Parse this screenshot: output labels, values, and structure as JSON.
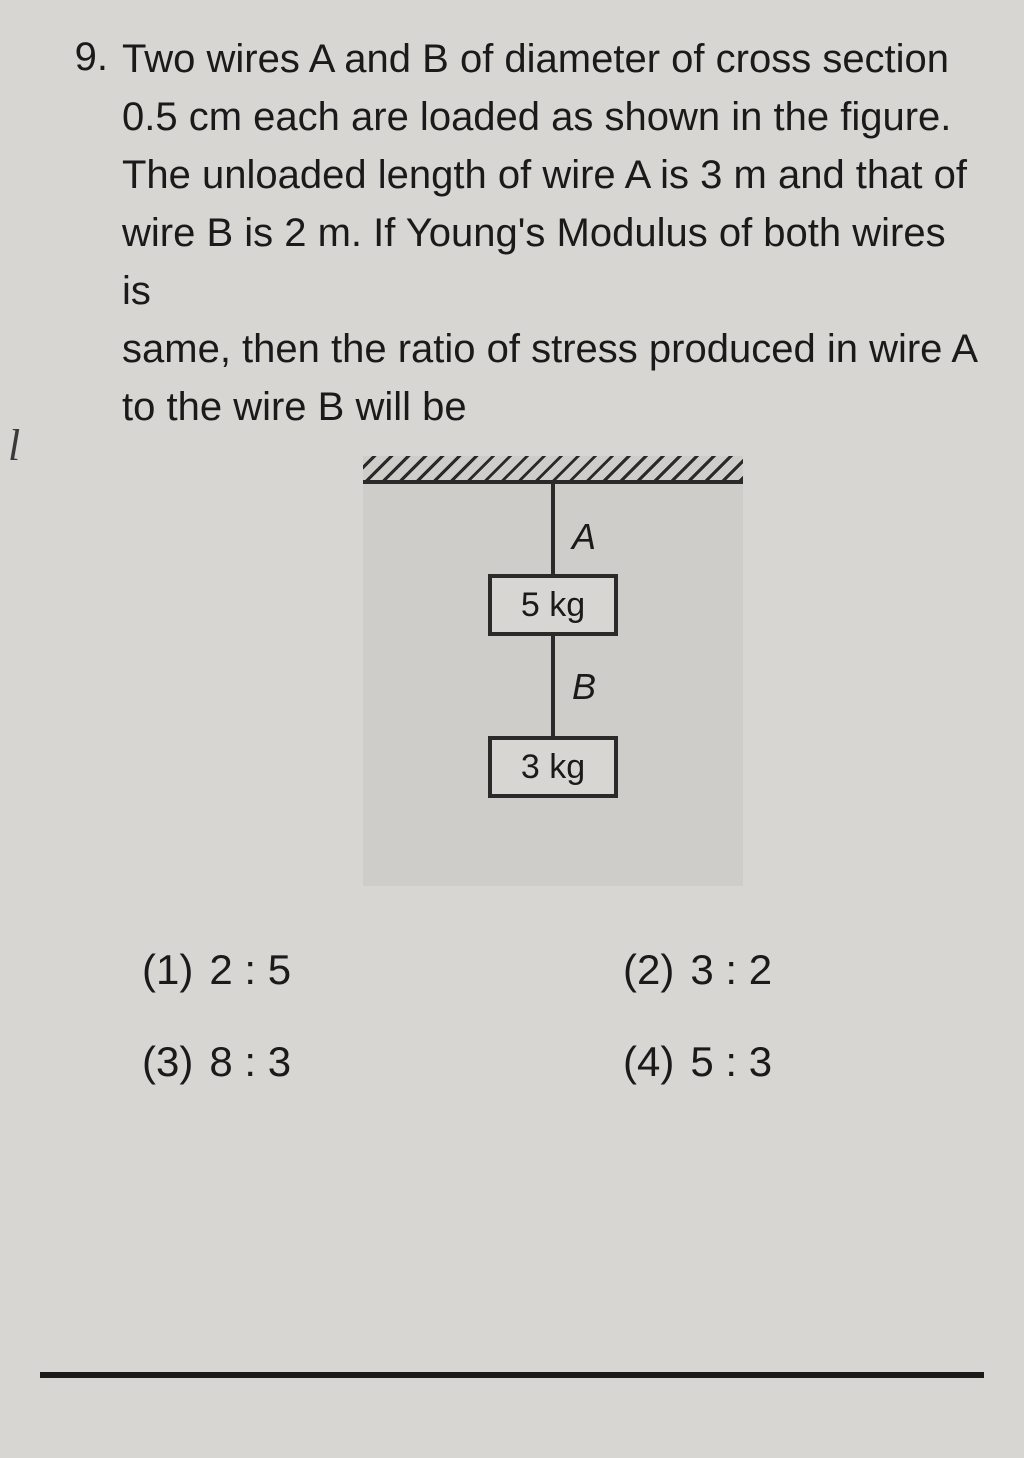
{
  "question": {
    "number": "9.",
    "lines": [
      "Two wires A and B of diameter of cross section",
      "0.5 cm each are loaded as shown in the figure.",
      "The unloaded length of wire A is 3 m and that of",
      "wire B is 2 m. If Young's Modulus of both wires is",
      "same, then the ratio of stress produced in wire A",
      "to the wire B will be"
    ]
  },
  "figure": {
    "wireA_label": "A",
    "wireB_label": "B",
    "mass1": "5 kg",
    "mass2": "3 kg"
  },
  "options": [
    {
      "num": "(1)",
      "val": "2 : 5"
    },
    {
      "num": "(2)",
      "val": "3 : 2"
    },
    {
      "num": "(3)",
      "val": "8 : 3"
    },
    {
      "num": "(4)",
      "val": "5 : 3"
    }
  ],
  "margin_note": "l"
}
